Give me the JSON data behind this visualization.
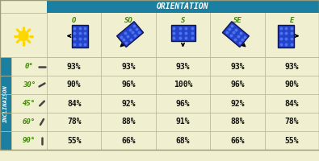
{
  "title": "ORIENTATION",
  "title_bg": "#1a7fa0",
  "title_color": "#ffffff",
  "orientations": [
    "O",
    "SO",
    "S",
    "SE",
    "E"
  ],
  "inclinations": [
    "0°",
    "30°",
    "45°",
    "60°",
    "90°"
  ],
  "values": [
    [
      "93%",
      "93%",
      "93%",
      "93%",
      "93%"
    ],
    [
      "90%",
      "96%",
      "100%",
      "96%",
      "90%"
    ],
    [
      "84%",
      "92%",
      "96%",
      "92%",
      "84%"
    ],
    [
      "78%",
      "88%",
      "91%",
      "88%",
      "78%"
    ],
    [
      "55%",
      "66%",
      "68%",
      "66%",
      "55%"
    ]
  ],
  "bg_color": "#f0f0d0",
  "header_bg": "#1a7fa0",
  "left_strip_bg": "#1a7fa0",
  "grid_color": "#bbbb99",
  "orientation_color": "#3a8a00",
  "inclination_color": "#3a8a00",
  "value_color": "#111111",
  "title_fontsize": 7,
  "label_fontsize": 6.5,
  "value_fontsize": 7,
  "sun_color": "#ffd700",
  "panel_color": "#2244cc",
  "panel_border": "#111155"
}
